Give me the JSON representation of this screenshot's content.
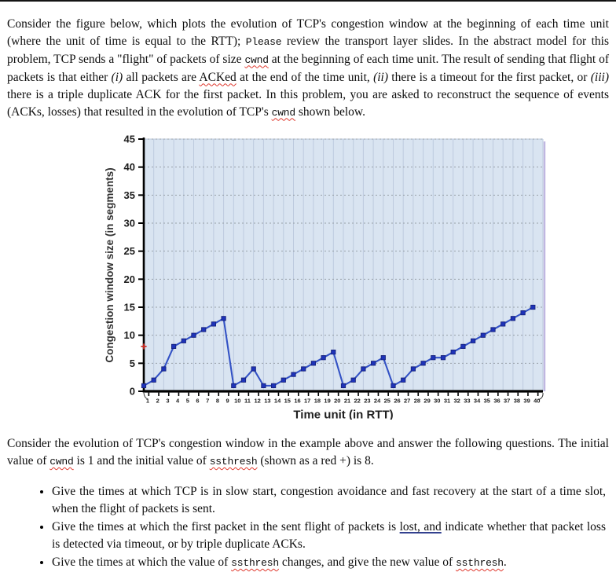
{
  "page": {
    "intro_paragraph": [
      {
        "s": "n",
        "t": "Consider the figure below, which plots the evolution of TCP's congestion window at the beginning of each time unit (where the unit of time is equal to the RTT); "
      },
      {
        "s": "m",
        "t": "Please"
      },
      {
        "s": "n",
        "t": " review the transport layer slides. In the abstract model for this problem, TCP sends a \"flight\" of packets of size "
      },
      {
        "s": "ms",
        "t": "cwnd"
      },
      {
        "s": "n",
        "t": "  at the beginning of each time unit. The result of sending that flight of packets is that either "
      },
      {
        "s": "i",
        "t": "(i)"
      },
      {
        "s": "n",
        "t": " all packets are "
      },
      {
        "s": "sq",
        "t": "ACKed"
      },
      {
        "s": "n",
        "t": " at the end of the time unit, "
      },
      {
        "s": "i",
        "t": "(ii)"
      },
      {
        "s": "n",
        "t": " there is a timeout for the first packet, or "
      },
      {
        "s": "i",
        "t": "(iii)"
      },
      {
        "s": "n",
        "t": " there is a triple duplicate ACK for the first packet. In this problem, you are asked to reconstruct the sequence of events (ACKs, losses) that resulted in the evolution of TCP's "
      },
      {
        "s": "ms",
        "t": "cwnd"
      },
      {
        "s": "n",
        "t": " shown below."
      }
    ],
    "middle_paragraph": [
      {
        "s": "n",
        "t": "Consider the evolution of TCP's congestion window in the example above and answer the following questions. The initial value of "
      },
      {
        "s": "ms",
        "t": "cwnd"
      },
      {
        "s": "n",
        "t": " is 1 and the initial value of "
      },
      {
        "s": "ms",
        "t": "ssthresh"
      },
      {
        "s": "n",
        "t": " (shown as a red +) is 8."
      }
    ],
    "bullets": [
      [
        {
          "s": "n",
          "t": "Give the times at which TCP is in slow start, congestion avoidance and fast recovery at the start of a time slot, when the flight of packets is sent."
        }
      ],
      [
        {
          "s": "n",
          "t": "Give the times at which the first packet in the sent flight of packets is "
        },
        {
          "s": "u",
          "t": "lost, and"
        },
        {
          "s": "n",
          "t": " indicate whether that packet loss is detected via timeout, or by triple duplicate ACKs."
        }
      ],
      [
        {
          "s": "n",
          "t": "Give the times at which the value of "
        },
        {
          "s": "ms",
          "t": "ssthresh"
        },
        {
          "s": "n",
          "t": " changes, and give the new value of "
        },
        {
          "s": "ms",
          "t": "ssthresh"
        },
        {
          "s": "n",
          "t": "."
        }
      ]
    ]
  },
  "chart_data": {
    "type": "line",
    "title": "",
    "xlabel": "Time unit (in RTT)",
    "ylabel": "Congestion window size (in segments)",
    "x": [
      1,
      2,
      3,
      4,
      5,
      6,
      7,
      8,
      9,
      10,
      11,
      12,
      13,
      14,
      15,
      16,
      17,
      18,
      19,
      20,
      21,
      22,
      23,
      24,
      25,
      26,
      27,
      28,
      29,
      30,
      31,
      32,
      33,
      34,
      35,
      36,
      37,
      38,
      39,
      40
    ],
    "series": [
      {
        "name": "cwnd",
        "marker": "square",
        "values": [
          1,
          2,
          4,
          8,
          9,
          10,
          11,
          12,
          13,
          1,
          2,
          4,
          1,
          1,
          2,
          3,
          4,
          5,
          6,
          7,
          1,
          2,
          4,
          5,
          6,
          1,
          2,
          4,
          5,
          6,
          6,
          7,
          8,
          9,
          10,
          11,
          12,
          13,
          14,
          15
        ]
      }
    ],
    "annotations": [
      {
        "name": "ssthresh-initial",
        "shape": "plus",
        "x": 1,
        "y": 8,
        "color": "#d42a20"
      }
    ],
    "ylim": [
      0,
      45
    ],
    "yticks": [
      0,
      5,
      10,
      15,
      20,
      25,
      30,
      35,
      40,
      45
    ],
    "grid": {
      "vertical": "solid-every-category",
      "horizontal": "dotted-every-5"
    },
    "legend": "none",
    "colors": {
      "plot_bg": "#d9e4f1",
      "v_grid": "#bdcade",
      "h_grid": "#98a0a8",
      "line": "#3352c5",
      "marker": "#1e33b8",
      "marker_edge": "#141f76",
      "axis": "#000000",
      "shadow": "#b6abdc"
    }
  }
}
